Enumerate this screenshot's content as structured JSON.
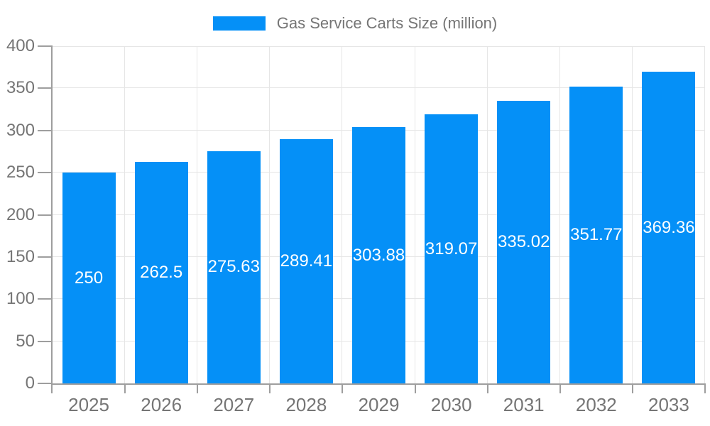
{
  "legend": {
    "label": "Gas Service Carts Size (million)"
  },
  "chart_data": {
    "type": "bar",
    "title": "Gas Service Carts Size (million)",
    "categories": [
      "2025",
      "2026",
      "2027",
      "2028",
      "2029",
      "2030",
      "2031",
      "2032",
      "2033"
    ],
    "values": [
      250,
      262.5,
      275.63,
      289.41,
      303.88,
      319.07,
      335.02,
      351.77,
      369.36
    ],
    "value_labels": [
      "250",
      "262.5",
      "275.63",
      "289.41",
      "303.88",
      "319.07",
      "335.02",
      "351.77",
      "369.36"
    ],
    "xlabel": "",
    "ylabel": "",
    "ylim": [
      0,
      400
    ],
    "yticks": [
      0,
      50,
      100,
      150,
      200,
      250,
      300,
      350,
      400
    ],
    "grid": true,
    "legend_position": "top",
    "colors": {
      "bar": "#0590f7",
      "grid": "#e6e6e6",
      "axis": "#9e9e9e",
      "tick_label": "#757575",
      "bar_label": "#ffffff"
    }
  }
}
